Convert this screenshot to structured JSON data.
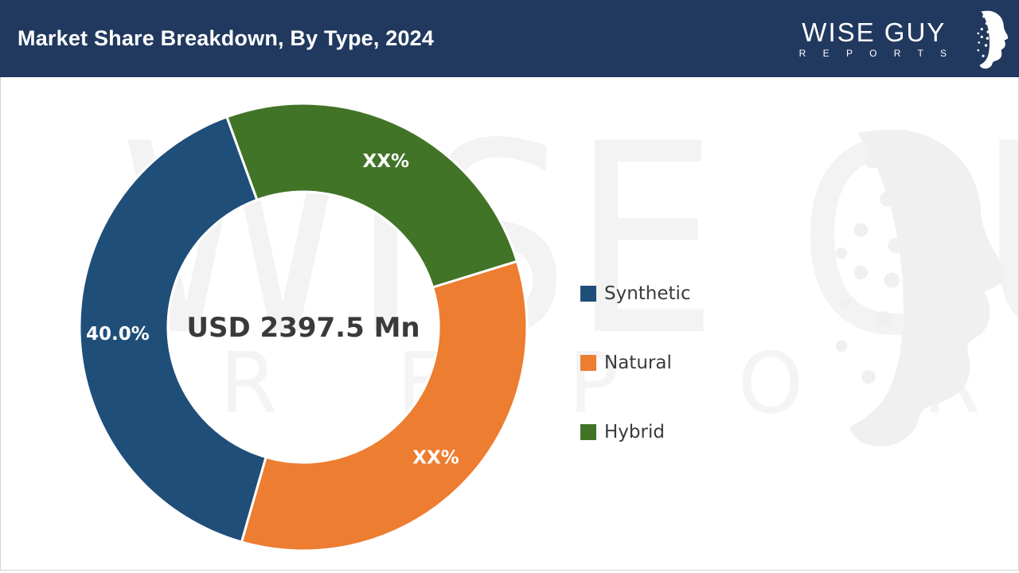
{
  "header": {
    "title": "Market Share Breakdown, By Type, 2024",
    "logo_line1": "WISE GUY",
    "logo_line2": "R E P O R T S",
    "background_color": "#22395f"
  },
  "chart_data": {
    "type": "pie",
    "subtype": "donut",
    "title": "Market Share Breakdown, By Type, 2024",
    "center_label": "USD 2397.5 Mn",
    "start_angle_deg": 110,
    "direction": "counterclockwise",
    "inner_radius_ratio": 0.605,
    "legend_position": "right",
    "slices": [
      {
        "name": "Synthetic",
        "value_pct": 40.0,
        "label": "40.0%",
        "color": "#1f4e79"
      },
      {
        "name": "Natural",
        "value_pct": 34.2,
        "label": "XX%",
        "color": "#ed7d31"
      },
      {
        "name": "Hybrid",
        "value_pct": 25.8,
        "label": "XX%",
        "color": "#427428"
      }
    ]
  },
  "watermark": {
    "line1": "WISE GUY",
    "line2": "R E P O R T S"
  }
}
